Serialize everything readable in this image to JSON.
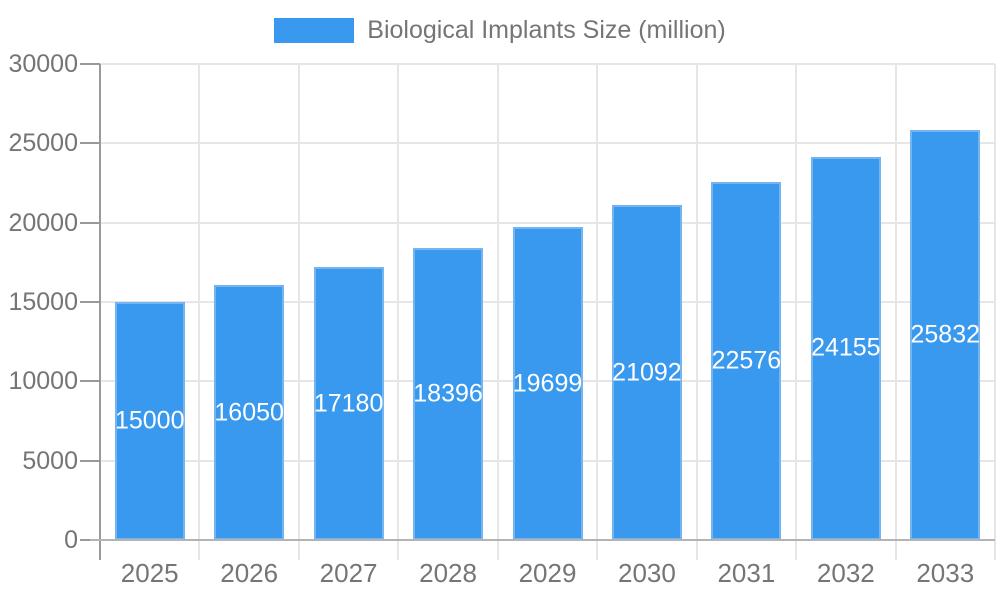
{
  "legend": {
    "label": "Biological Implants Size (million)",
    "swatch_color": "#3899ee"
  },
  "chart_data": {
    "type": "bar",
    "title": "Biological Implants Size (million)",
    "categories": [
      "2025",
      "2026",
      "2027",
      "2028",
      "2029",
      "2030",
      "2031",
      "2032",
      "2033"
    ],
    "series": [
      {
        "name": "Biological Implants Size (million)",
        "values": [
          15000,
          16050,
          17180,
          18396,
          19699,
          21092,
          22576,
          24155,
          25832
        ],
        "color": "#3899ee"
      }
    ],
    "value_labels": [
      "15000",
      "16050",
      "17180",
      "18396",
      "19699",
      "21092",
      "22576",
      "24155",
      "25832"
    ],
    "value_label_position": "center-of-bar",
    "value_label_color": "#ffffff",
    "xlabel": "",
    "ylabel": "",
    "ylim": [
      0,
      30000
    ],
    "yticks": [
      0,
      5000,
      10000,
      15000,
      20000,
      25000,
      30000
    ],
    "ytick_labels": [
      "0",
      "5000",
      "10000",
      "15000",
      "20000",
      "25000",
      "30000"
    ],
    "grid": true,
    "legend_position": "top",
    "bar_width_fraction": 0.7
  },
  "colors": {
    "bar": "#3899ee",
    "bar_edge": "#74b4f1",
    "axis_text": "#757575",
    "gridline": "#e6e6e6",
    "y_axis_line": "#999999",
    "x_axis_line": "#b3b3b3",
    "value_label": "#ffffff",
    "background": "#ffffff"
  }
}
